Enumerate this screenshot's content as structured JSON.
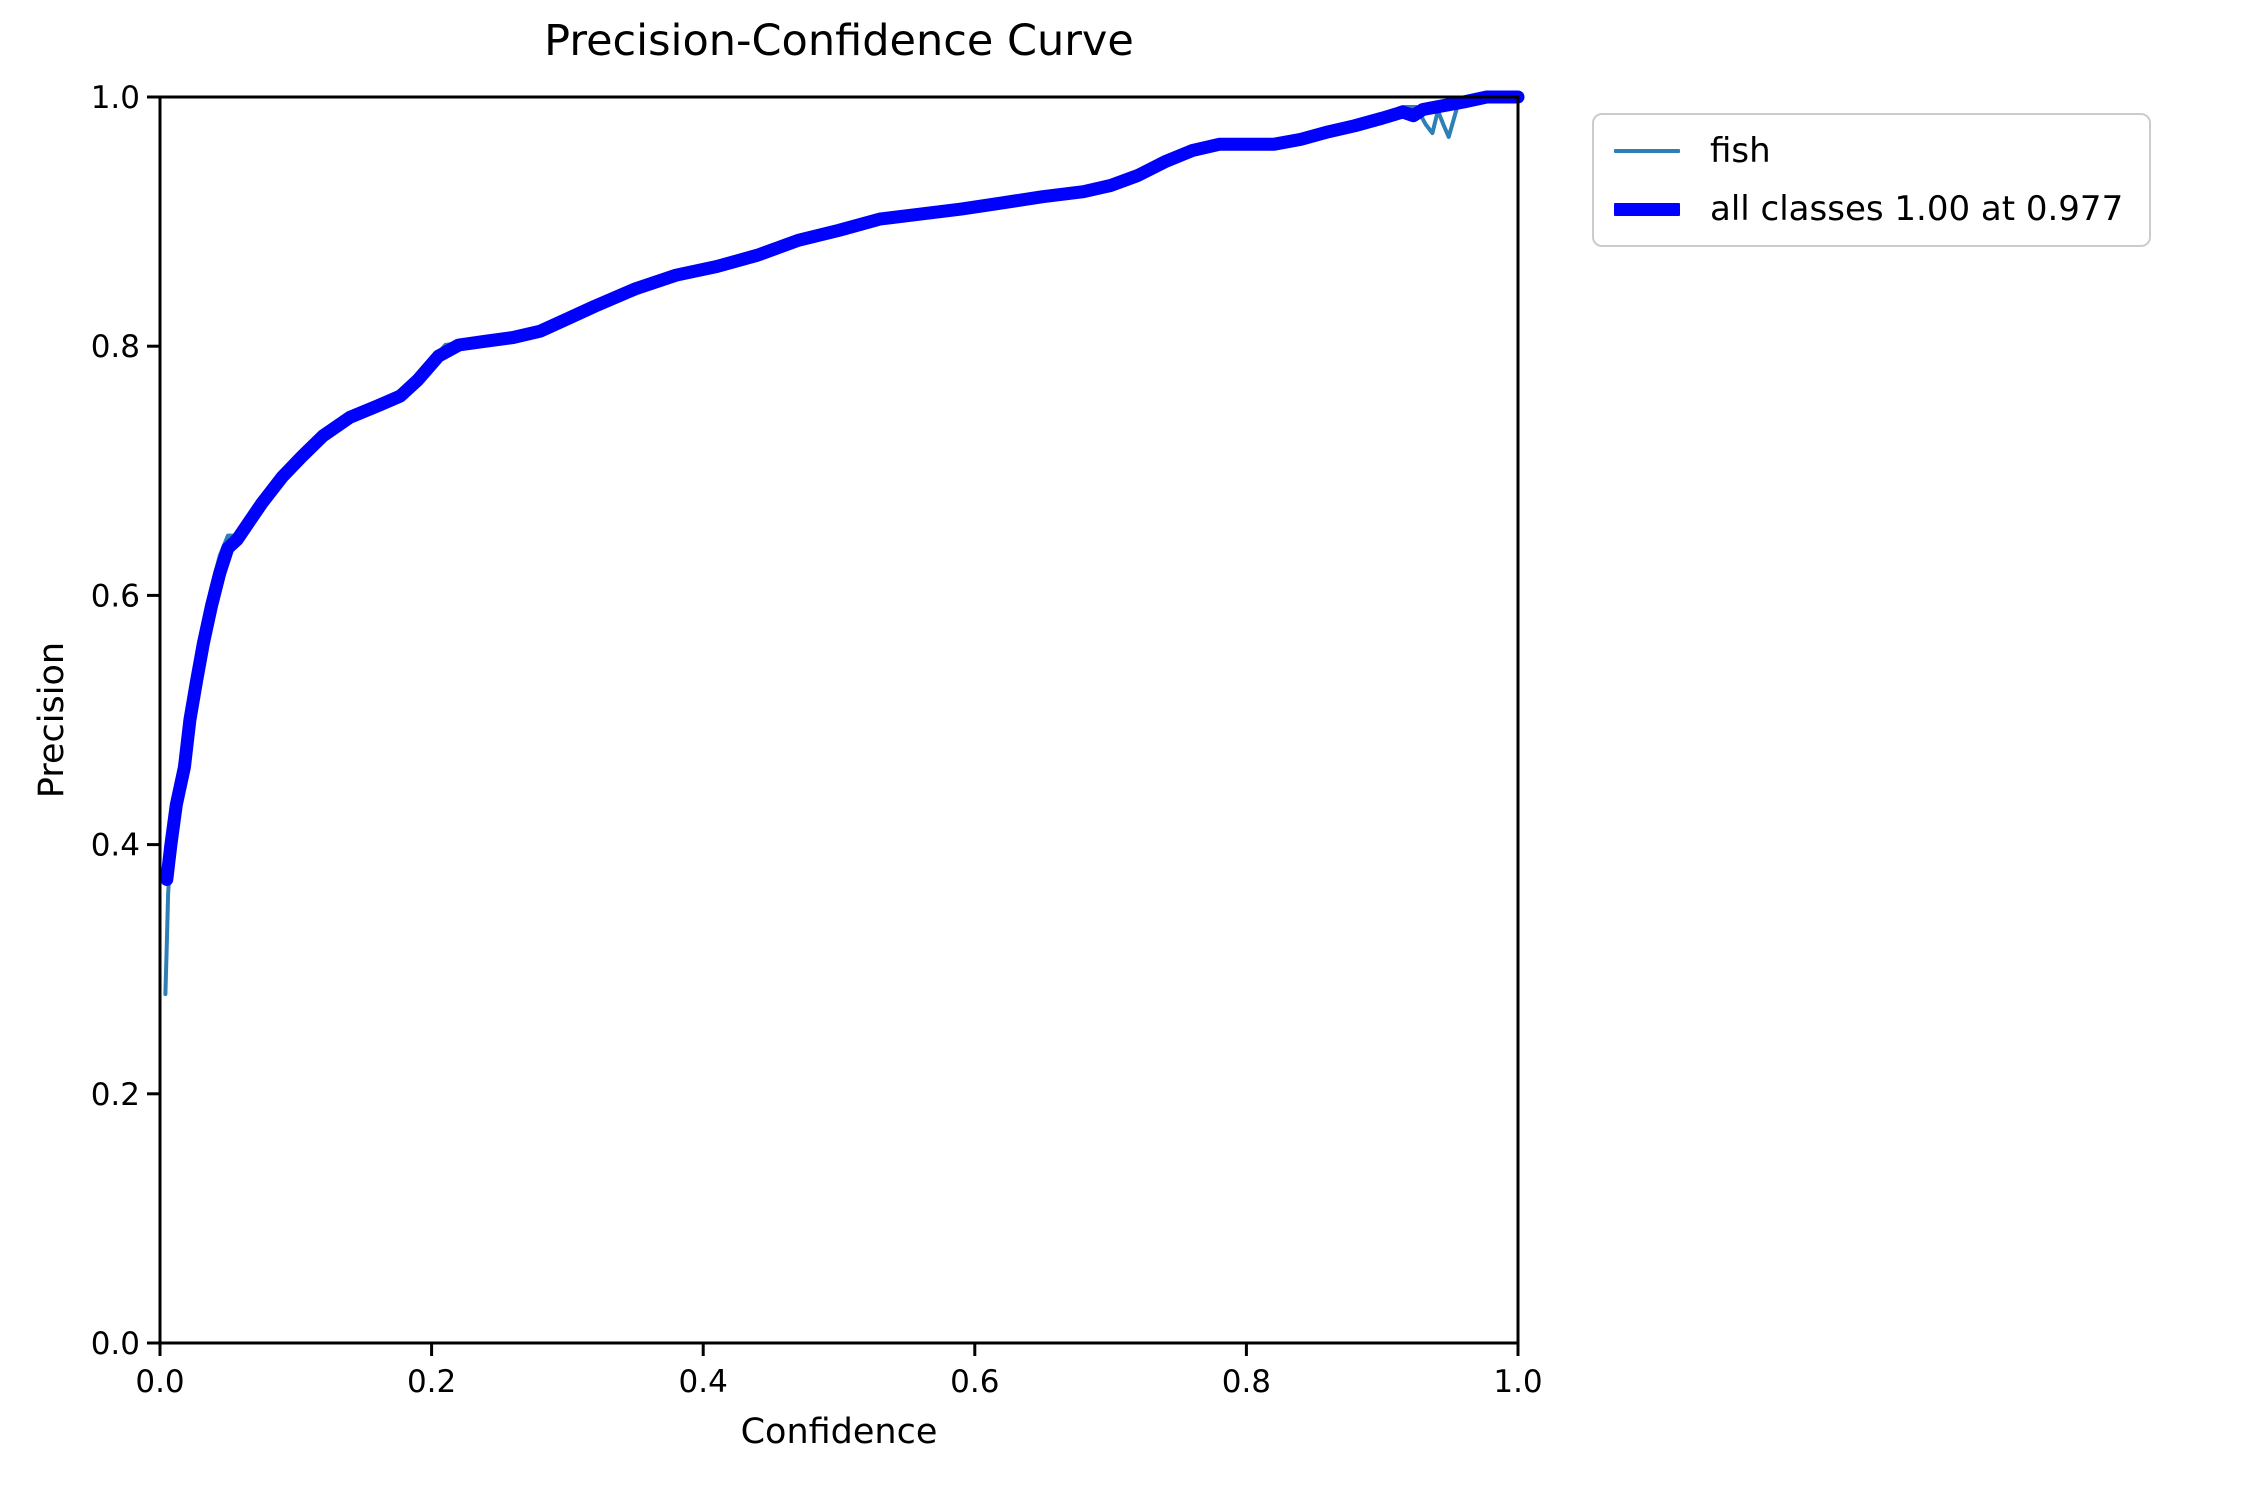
{
  "title": "Precision-Confidence Curve",
  "axes": {
    "xlabel": "Confidence",
    "ylabel": "Precision",
    "xticks": [
      "0.0",
      "0.2",
      "0.4",
      "0.6",
      "0.8",
      "1.0"
    ],
    "yticks": [
      "0.0",
      "0.2",
      "0.4",
      "0.6",
      "0.8",
      "1.0"
    ]
  },
  "legend": {
    "entries": [
      {
        "label": "fish"
      },
      {
        "label": "all classes 1.00 at 0.977"
      }
    ]
  },
  "chart_data": {
    "type": "line",
    "title": "Precision-Confidence Curve",
    "xlabel": "Confidence",
    "ylabel": "Precision",
    "xlim": [
      0.0,
      1.0
    ],
    "ylim": [
      0.0,
      1.0
    ],
    "grid": false,
    "legend_position": "outside upper right",
    "background": "#ffffff",
    "spine_color": "#000000",
    "series": [
      {
        "name": "fish",
        "color": "#2d7fb5",
        "width": 4,
        "points": [
          [
            0.004,
            0.28
          ],
          [
            0.005,
            0.32
          ],
          [
            0.006,
            0.36
          ],
          [
            0.008,
            0.4
          ],
          [
            0.012,
            0.432
          ],
          [
            0.018,
            0.465
          ],
          [
            0.022,
            0.502
          ],
          [
            0.027,
            0.54
          ],
          [
            0.032,
            0.575
          ],
          [
            0.038,
            0.607
          ],
          [
            0.044,
            0.632
          ],
          [
            0.05,
            0.648
          ],
          [
            0.055,
            0.648
          ],
          [
            0.06,
            0.656
          ],
          [
            0.07,
            0.668
          ],
          [
            0.08,
            0.684
          ],
          [
            0.096,
            0.706
          ],
          [
            0.11,
            0.72
          ],
          [
            0.122,
            0.733
          ],
          [
            0.142,
            0.746
          ],
          [
            0.16,
            0.754
          ],
          [
            0.177,
            0.762
          ],
          [
            0.19,
            0.775
          ],
          [
            0.2,
            0.788
          ],
          [
            0.21,
            0.801
          ],
          [
            0.23,
            0.804
          ],
          [
            0.25,
            0.807
          ],
          [
            0.267,
            0.81
          ],
          [
            0.28,
            0.814
          ],
          [
            0.295,
            0.822
          ],
          [
            0.31,
            0.829
          ],
          [
            0.33,
            0.839
          ],
          [
            0.35,
            0.848
          ],
          [
            0.38,
            0.859
          ],
          [
            0.41,
            0.865
          ],
          [
            0.44,
            0.874
          ],
          [
            0.47,
            0.886
          ],
          [
            0.5,
            0.894
          ],
          [
            0.515,
            0.901
          ],
          [
            0.545,
            0.905
          ],
          [
            0.57,
            0.908
          ],
          [
            0.6,
            0.912
          ],
          [
            0.62,
            0.916
          ],
          [
            0.65,
            0.921
          ],
          [
            0.68,
            0.925
          ],
          [
            0.7,
            0.93
          ],
          [
            0.72,
            0.938
          ],
          [
            0.74,
            0.949
          ],
          [
            0.76,
            0.958
          ],
          [
            0.78,
            0.963
          ],
          [
            0.8,
            0.963
          ],
          [
            0.82,
            0.963
          ],
          [
            0.84,
            0.967
          ],
          [
            0.86,
            0.973
          ],
          [
            0.88,
            0.978
          ],
          [
            0.9,
            0.984
          ],
          [
            0.908,
            0.989
          ],
          [
            0.915,
            0.992
          ],
          [
            0.925,
            0.992
          ],
          [
            0.932,
            0.978
          ],
          [
            0.937,
            0.971
          ],
          [
            0.941,
            0.989
          ],
          [
            0.945,
            0.978
          ],
          [
            0.949,
            0.968
          ],
          [
            0.955,
            0.991
          ],
          [
            0.962,
            0.997
          ],
          [
            0.977,
            1.0
          ],
          [
            1.0,
            1.0
          ]
        ]
      },
      {
        "name": "all classes 1.00 at 0.977",
        "color": "#0000ff",
        "width": 13,
        "points": [
          [
            0.005,
            0.372
          ],
          [
            0.008,
            0.4
          ],
          [
            0.012,
            0.432
          ],
          [
            0.018,
            0.462
          ],
          [
            0.022,
            0.5
          ],
          [
            0.027,
            0.532
          ],
          [
            0.032,
            0.562
          ],
          [
            0.038,
            0.592
          ],
          [
            0.044,
            0.618
          ],
          [
            0.05,
            0.638
          ],
          [
            0.057,
            0.645
          ],
          [
            0.065,
            0.658
          ],
          [
            0.075,
            0.674
          ],
          [
            0.09,
            0.695
          ],
          [
            0.105,
            0.712
          ],
          [
            0.12,
            0.728
          ],
          [
            0.14,
            0.743
          ],
          [
            0.16,
            0.752
          ],
          [
            0.177,
            0.76
          ],
          [
            0.19,
            0.773
          ],
          [
            0.205,
            0.792
          ],
          [
            0.22,
            0.801
          ],
          [
            0.24,
            0.804
          ],
          [
            0.26,
            0.807
          ],
          [
            0.28,
            0.812
          ],
          [
            0.3,
            0.822
          ],
          [
            0.32,
            0.832
          ],
          [
            0.35,
            0.846
          ],
          [
            0.38,
            0.857
          ],
          [
            0.41,
            0.864
          ],
          [
            0.44,
            0.873
          ],
          [
            0.47,
            0.885
          ],
          [
            0.5,
            0.893
          ],
          [
            0.53,
            0.902
          ],
          [
            0.56,
            0.906
          ],
          [
            0.59,
            0.91
          ],
          [
            0.62,
            0.915
          ],
          [
            0.65,
            0.92
          ],
          [
            0.68,
            0.924
          ],
          [
            0.7,
            0.929
          ],
          [
            0.72,
            0.937
          ],
          [
            0.74,
            0.948
          ],
          [
            0.76,
            0.957
          ],
          [
            0.78,
            0.962
          ],
          [
            0.8,
            0.962
          ],
          [
            0.82,
            0.962
          ],
          [
            0.84,
            0.966
          ],
          [
            0.86,
            0.972
          ],
          [
            0.88,
            0.977
          ],
          [
            0.9,
            0.983
          ],
          [
            0.915,
            0.988
          ],
          [
            0.923,
            0.985
          ],
          [
            0.93,
            0.99
          ],
          [
            0.945,
            0.993
          ],
          [
            0.96,
            0.996
          ],
          [
            0.977,
            1.0
          ],
          [
            1.0,
            1.0
          ]
        ]
      }
    ]
  }
}
